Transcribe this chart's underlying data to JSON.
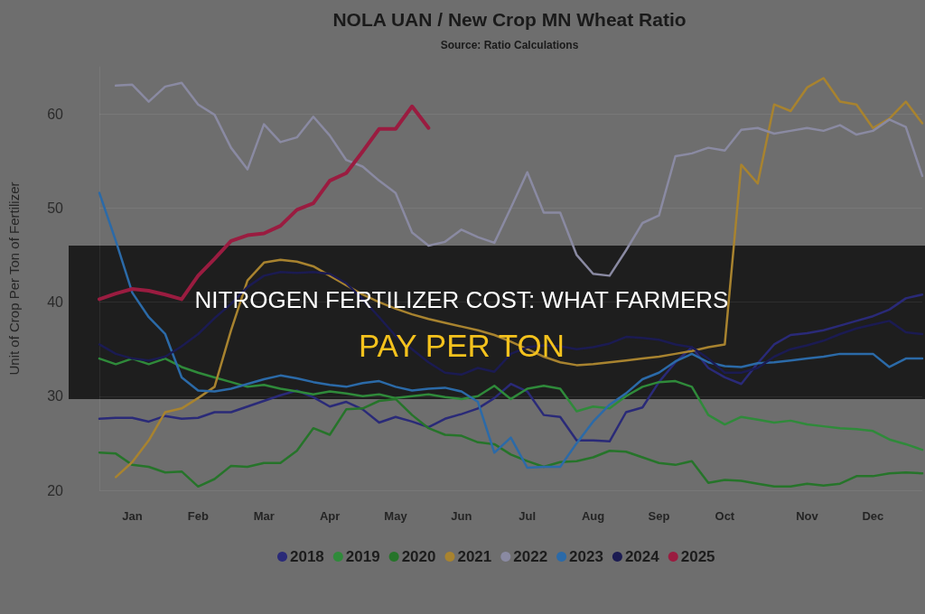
{
  "chart_data": {
    "type": "line",
    "title": "NOLA UAN / New Crop MN Wheat Ratio",
    "subtitle": "Source: Ratio Calculations",
    "ylabel": "Unit of Crop Per Ton of Fertilizer",
    "annotations": [
      "NITROGEN FERTILIZER COST: WHAT FARMERS",
      "PAY PER TON"
    ],
    "categories": [
      null,
      null,
      "Jan",
      null,
      null,
      null,
      "Feb",
      null,
      null,
      null,
      "Mar",
      null,
      null,
      null,
      "Apr",
      null,
      null,
      null,
      "May",
      null,
      null,
      null,
      "Jun",
      null,
      null,
      null,
      "Jul",
      null,
      null,
      null,
      "Aug",
      null,
      null,
      null,
      "Sep",
      null,
      null,
      null,
      "Oct",
      null,
      null,
      null,
      null,
      "Nov",
      null,
      null,
      null,
      "Dec",
      null,
      null,
      null
    ],
    "ylim": [
      20,
      65
    ],
    "yticks": [
      20,
      30,
      40,
      50,
      60
    ],
    "grid": "y",
    "legend": "bottom",
    "series": [
      {
        "name": "2018",
        "color": "#2a2a78",
        "values": [
          27.6,
          27.7,
          27.7,
          27.3,
          27.9,
          27.6,
          27.7,
          28.3,
          28.3,
          28.9,
          29.5,
          30.1,
          30.6,
          29.9,
          28.9,
          29.4,
          28.6,
          27.2,
          27.8,
          27.3,
          26.7,
          27.6,
          28.1,
          28.7,
          29.8,
          31.3,
          30.5,
          28.0,
          27.8,
          25.3,
          25.3,
          25.2,
          28.3,
          28.8,
          31.5,
          33.6,
          35.2,
          33.0,
          32.0,
          31.3,
          33.5,
          35.5,
          36.5,
          36.7,
          37.0,
          37.5,
          38.0,
          38.5,
          39.2,
          40.4,
          40.8
        ]
      },
      {
        "name": "2019",
        "color": "#2f8a3a",
        "values": [
          34.0,
          33.4,
          34.0,
          33.4,
          34.0,
          33.1,
          32.5,
          32.0,
          31.5,
          31.0,
          31.2,
          30.8,
          30.5,
          30.2,
          30.5,
          30.3,
          30.0,
          30.2,
          29.8,
          30.0,
          30.2,
          29.9,
          29.7,
          30.0,
          31.1,
          29.7,
          30.8,
          31.1,
          30.8,
          28.4,
          28.9,
          28.7,
          30.0,
          31.0,
          31.5,
          31.6,
          31.0,
          28.0,
          27.0,
          27.8,
          27.5,
          27.2,
          27.4,
          27.0,
          26.8,
          26.6,
          26.5,
          26.3,
          25.4,
          24.9,
          24.3
        ]
      },
      {
        "name": "2020",
        "color": "#26742a",
        "values": [
          24.0,
          23.9,
          22.7,
          22.5,
          21.9,
          22.0,
          20.4,
          21.2,
          22.6,
          22.5,
          22.9,
          22.9,
          24.2,
          26.6,
          25.9,
          28.6,
          28.7,
          29.5,
          29.7,
          28.0,
          26.6,
          25.9,
          25.8,
          25.1,
          24.9,
          23.8,
          23.1,
          22.5,
          23.0,
          23.1,
          23.5,
          24.2,
          24.1,
          23.5,
          22.9,
          22.7,
          23.1,
          20.8,
          21.1,
          21.0,
          20.7,
          20.4,
          20.4,
          20.7,
          20.5,
          20.7,
          21.5,
          21.5,
          21.8,
          21.9,
          21.8
        ]
      },
      {
        "name": "2021",
        "color": "#a8832f",
        "values": [
          null,
          21.4,
          23.0,
          25.3,
          28.3,
          28.7,
          29.8,
          31.0,
          37.0,
          42.3,
          44.2,
          44.5,
          44.3,
          43.8,
          42.8,
          41.8,
          40.8,
          40.0,
          39.3,
          38.7,
          38.2,
          37.8,
          37.4,
          37.0,
          36.5,
          35.8,
          35.0,
          34.2,
          33.6,
          33.3,
          33.4,
          33.6,
          33.8,
          34.0,
          34.2,
          34.5,
          34.8,
          35.2,
          35.5,
          54.6,
          52.6,
          61.0,
          60.3,
          62.8,
          63.8,
          61.3,
          61.0,
          58.5,
          59.5,
          61.3,
          59.0
        ]
      },
      {
        "name": "2022",
        "color": "#8a8aa2",
        "values": [
          null,
          63.0,
          63.1,
          61.3,
          62.9,
          63.3,
          61.0,
          59.9,
          56.4,
          54.1,
          58.9,
          57.0,
          57.5,
          59.7,
          57.7,
          55.1,
          54.4,
          52.9,
          51.6,
          47.4,
          46.0,
          46.4,
          47.7,
          46.9,
          46.3,
          50.0,
          53.8,
          49.5,
          49.5,
          45.0,
          43.0,
          42.8,
          45.5,
          48.4,
          49.2,
          55.5,
          55.8,
          56.4,
          56.1,
          58.3,
          58.5,
          57.9,
          58.2,
          58.5,
          58.2,
          58.8,
          57.8,
          58.2,
          59.4,
          58.6,
          53.4
        ]
      },
      {
        "name": "2023",
        "color": "#2b6aa8",
        "values": [
          51.6,
          46.5,
          41.0,
          38.4,
          36.6,
          32.0,
          30.6,
          30.5,
          30.8,
          31.3,
          31.8,
          32.2,
          31.9,
          31.5,
          31.2,
          31.0,
          31.4,
          31.6,
          31.0,
          30.6,
          30.8,
          30.9,
          30.5,
          29.4,
          24.0,
          25.6,
          22.4,
          22.5,
          22.5,
          25.0,
          27.3,
          29.1,
          30.3,
          31.8,
          32.5,
          33.7,
          34.5,
          33.6,
          33.2,
          33.1,
          33.5,
          33.6,
          33.8,
          34.0,
          34.2,
          34.5,
          34.5,
          34.5,
          33.1,
          34.0,
          34.0
        ]
      },
      {
        "name": "2024",
        "color": "#1b1b52",
        "values": [
          35.5,
          34.5,
          34.0,
          33.8,
          34.2,
          35.3,
          36.6,
          38.3,
          39.8,
          41.6,
          42.8,
          43.2,
          43.1,
          43.2,
          43.0,
          42.0,
          40.3,
          38.4,
          36.4,
          35.0,
          33.6,
          32.5,
          32.3,
          33.0,
          32.6,
          34.5,
          35.2,
          35.4,
          35.3,
          35.0,
          35.2,
          35.6,
          36.3,
          36.2,
          36.0,
          35.5,
          35.2,
          34.0,
          32.5,
          32.5,
          33.0,
          34.2,
          35.0,
          35.4,
          35.9,
          36.6,
          37.2,
          37.6,
          38.0,
          36.8,
          36.6
        ]
      },
      {
        "name": "2025",
        "color": "#9a1c40",
        "values": [
          40.3,
          40.9,
          41.4,
          41.2,
          40.8,
          40.3,
          42.8,
          44.6,
          46.5,
          47.1,
          47.3,
          48.1,
          49.8,
          50.5,
          52.9,
          53.7,
          56.0,
          58.4,
          58.4,
          60.8,
          58.5,
          null,
          null,
          null,
          null,
          null,
          null,
          null,
          null,
          null,
          null,
          null,
          null,
          null,
          null,
          null,
          null,
          null,
          null,
          null,
          null,
          null,
          null,
          null,
          null,
          null,
          null,
          null,
          null,
          null,
          null
        ]
      }
    ]
  }
}
